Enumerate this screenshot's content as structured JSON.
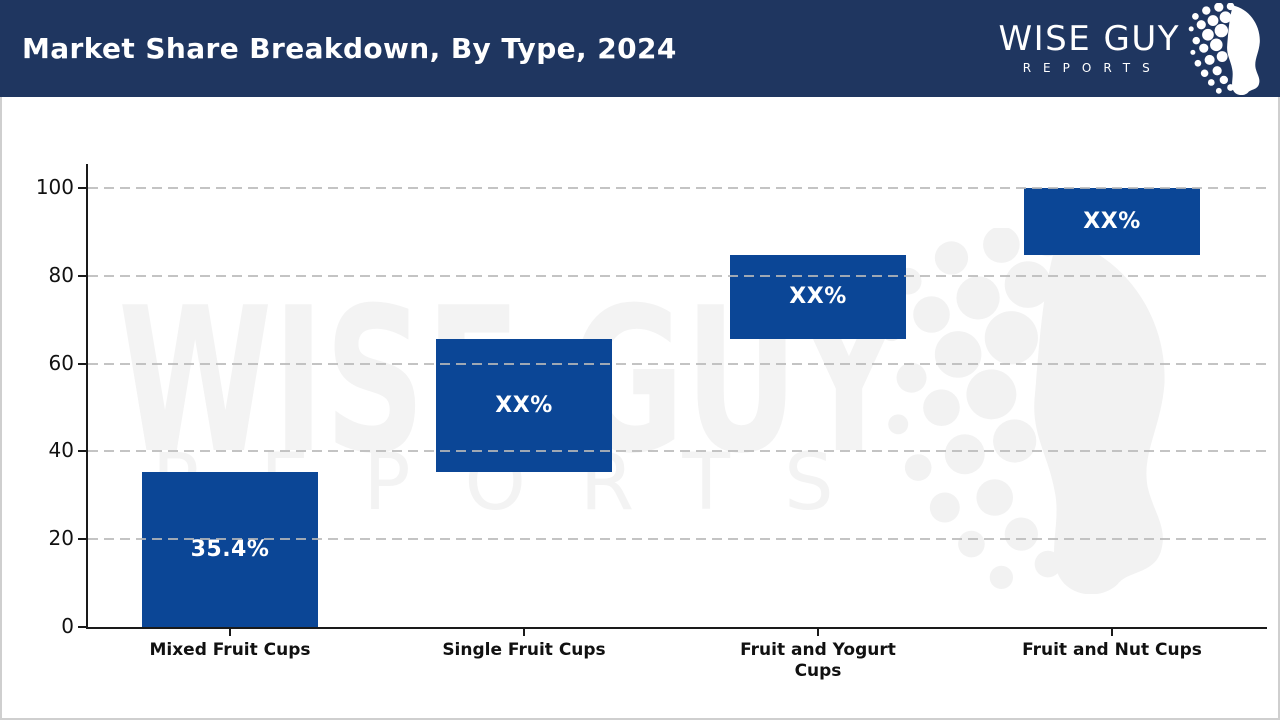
{
  "header": {
    "title": "Market Share Breakdown, By Type, 2024",
    "logo_name": "WISE GUY",
    "logo_sub": "REPORTS"
  },
  "watermark": {
    "line1": "WISE GUY",
    "line2": "REPORTS"
  },
  "chart_data": {
    "type": "bar",
    "subtype": "waterfall",
    "title": "Market Share Breakdown, By Type, 2024",
    "categories": [
      "Mixed Fruit Cups",
      "Single Fruit Cups",
      "Fruit and Yogurt Cups",
      "Fruit and Nut Cups"
    ],
    "segments": [
      {
        "category": "Mixed Fruit Cups",
        "start": 0,
        "end": 35.4,
        "value": 35.4,
        "label": "35.4%"
      },
      {
        "category": "Single Fruit Cups",
        "start": 35.4,
        "end": 65.6,
        "value": 30.2,
        "label": "XX%"
      },
      {
        "category": "Fruit and Yogurt Cups",
        "start": 65.6,
        "end": 84.8,
        "value": 19.2,
        "label": "XX%"
      },
      {
        "category": "Fruit and Nut Cups",
        "start": 84.8,
        "end": 100,
        "value": 15.2,
        "label": "XX%"
      }
    ],
    "xlabel": "",
    "ylabel": "",
    "yticks": [
      0,
      20,
      40,
      60,
      80,
      100
    ],
    "ylim": [
      0,
      105
    ],
    "grid": "horizontal-dashed",
    "legend_position": "none",
    "bar_color": "#0b4696",
    "bar_label_color": "#ffffff"
  },
  "colors": {
    "header_bg": "#1f3660",
    "bar_blue": "#0b4696",
    "grid_gray": "#c9c9c9",
    "watermark_gray": "#f3f3f3",
    "axis_black": "#1a1a1a",
    "frame_border": "#cfcfcf"
  }
}
